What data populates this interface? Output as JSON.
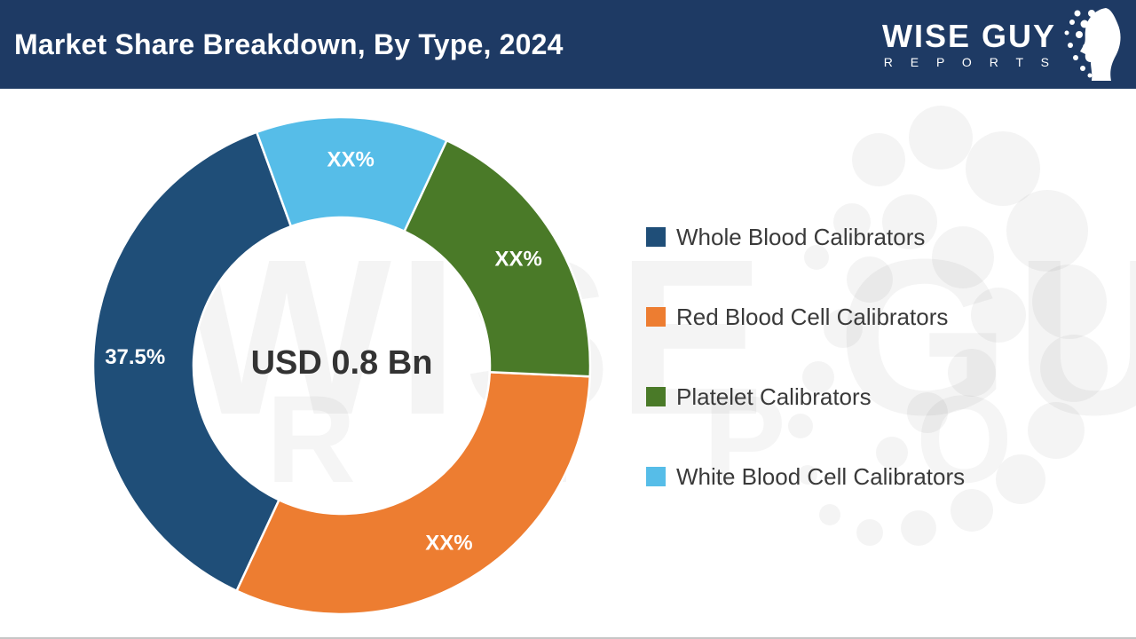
{
  "header": {
    "title": "Market Share Breakdown, By Type, 2024",
    "bg_color": "#1e3a64",
    "logo": {
      "line1": "WISE GUY",
      "line2": "R E P O R T S"
    }
  },
  "watermark": {
    "line1": "WISE GU",
    "line2": "R E P O R T S"
  },
  "chart_data": {
    "type": "pie",
    "subtype": "donut",
    "title": "Market Share Breakdown, By Type, 2024",
    "center_label": "USD 0.8 Bn",
    "legend_position": "right",
    "start_angle_deg": 110,
    "direction": "counterclockwise",
    "inner_radius_ratio": 0.6,
    "segments": [
      {
        "name": "Whole Blood Calibrators",
        "value": 37.5,
        "display_label": "37.5%",
        "color": "#1f4e78"
      },
      {
        "name": "Red Blood Cell Calibrators",
        "value": 31.25,
        "display_label": "XX%",
        "color": "#ed7d31"
      },
      {
        "name": "Platelet Calibrators",
        "value": 18.75,
        "display_label": "XX%",
        "color": "#4a7a28"
      },
      {
        "name": "White Blood Cell Calibrators",
        "value": 12.5,
        "display_label": "XX%",
        "color": "#56bde8"
      }
    ]
  }
}
